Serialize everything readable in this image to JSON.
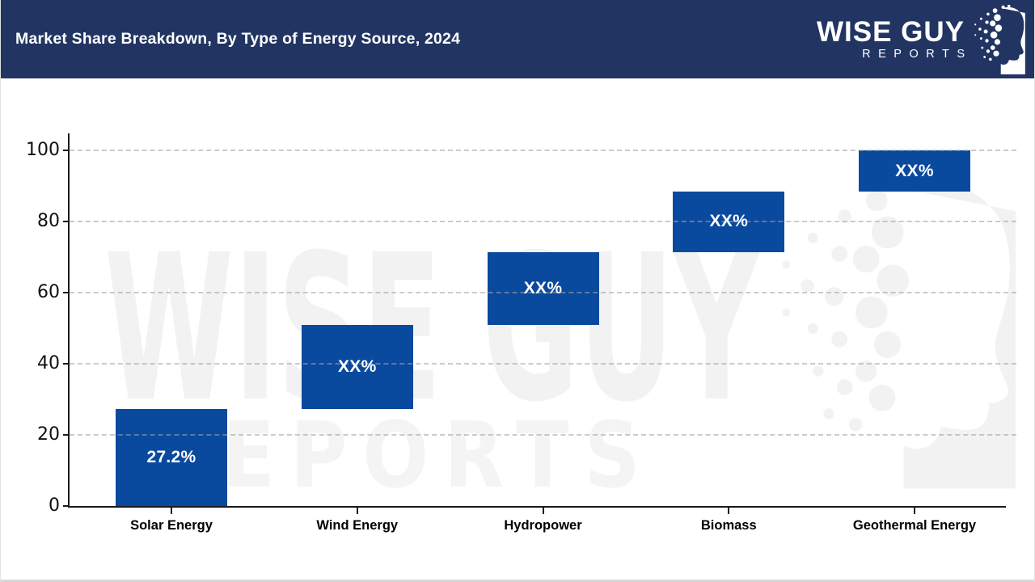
{
  "header": {
    "title": "Market Share Breakdown, By Type of Energy Source, 2024",
    "logo": {
      "line1": "WISE GUY",
      "line2": "REPORTS"
    }
  },
  "watermark": {
    "line1": "WISE GUY",
    "line2": "REPORTS"
  },
  "colors": {
    "header_bg": "#223562",
    "bar": "#09499E",
    "axis": "#1a1a1a",
    "title_text": "#ffffff",
    "bar_label_text": "#ffffff",
    "watermark_text": "#f2f2f2"
  },
  "chart_data": {
    "type": "bar",
    "variant": "waterfall",
    "title": "Market Share Breakdown, By Type of Energy Source, 2024",
    "categories": [
      "Solar Energy",
      "Wind Energy",
      "Hydropower",
      "Biomass",
      "Geothermal Energy"
    ],
    "segments": [
      {
        "category": "Solar Energy",
        "start": 0,
        "end": 27.2,
        "label": "27.2%"
      },
      {
        "category": "Wind Energy",
        "start": 27.2,
        "end": 51.0,
        "label": "XX%"
      },
      {
        "category": "Hydropower",
        "start": 51.0,
        "end": 71.4,
        "label": "XX%"
      },
      {
        "category": "Biomass",
        "start": 71.4,
        "end": 88.4,
        "label": "XX%"
      },
      {
        "category": "Geothermal Energy",
        "start": 88.4,
        "end": 100,
        "label": "XX%"
      }
    ],
    "xlabel": "",
    "ylabel": "",
    "yticks": [
      0,
      20,
      40,
      60,
      80,
      100
    ],
    "ylim": [
      0,
      105
    ],
    "grid": "horizontal-dashed",
    "legend": "none",
    "bar_color": "#09499E"
  }
}
